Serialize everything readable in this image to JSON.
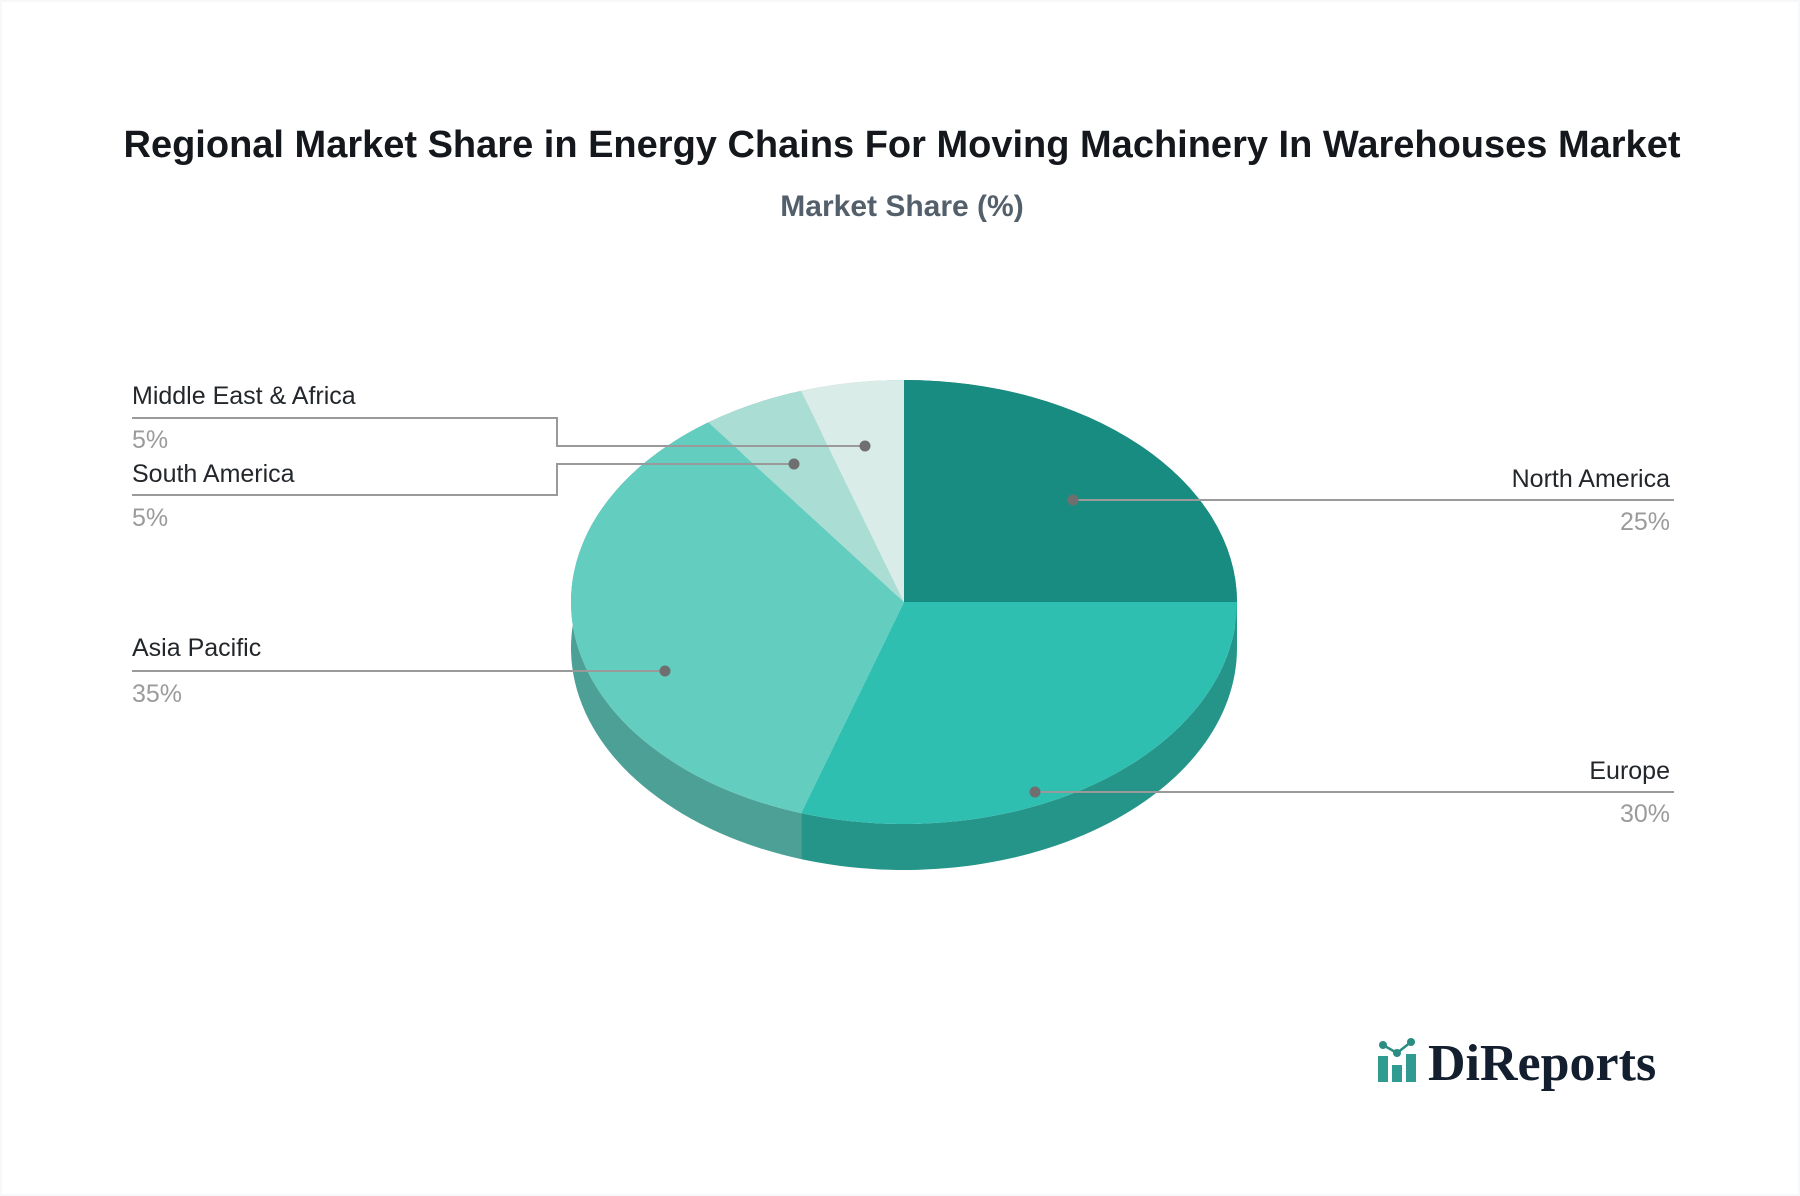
{
  "title": "Regional Market Share in Energy Chains For Moving Machinery In Warehouses Market",
  "subtitle": "Market Share (%)",
  "chart_data": {
    "type": "pie",
    "title": "Regional Market Share in Energy Chains For Moving Machinery In Warehouses Market",
    "subtitle": "Market Share (%)",
    "effect": "3d",
    "start_angle_deg": 0,
    "direction": "clockwise",
    "legend_position": "none (leader-line labels)",
    "slices": [
      {
        "label": "North America",
        "value": 25,
        "pct_label": "25%",
        "color": "#198c82"
      },
      {
        "label": "Europe",
        "value": 30,
        "pct_label": "30%",
        "color": "#2fbfb1"
      },
      {
        "label": "Asia Pacific",
        "value": 35,
        "pct_label": "35%",
        "color": "#63cdbf"
      },
      {
        "label": "South America",
        "value": 5,
        "pct_label": "5%",
        "color": "#aaddd3"
      },
      {
        "label": "Middle East & Africa",
        "value": 5,
        "pct_label": "5%",
        "color": "#d9ece8"
      }
    ]
  },
  "branding": {
    "logo_text": "DiReports",
    "logo_icon": "bar-line-chart-icon",
    "navy": "#131f2e",
    "teal": "#2f9b91"
  },
  "styles": {
    "leader_line_color": "#9a9a9a",
    "leader_dot_color": "#6f6f6f",
    "label_color": "#23272b",
    "pct_color": "#9b9b9b"
  }
}
